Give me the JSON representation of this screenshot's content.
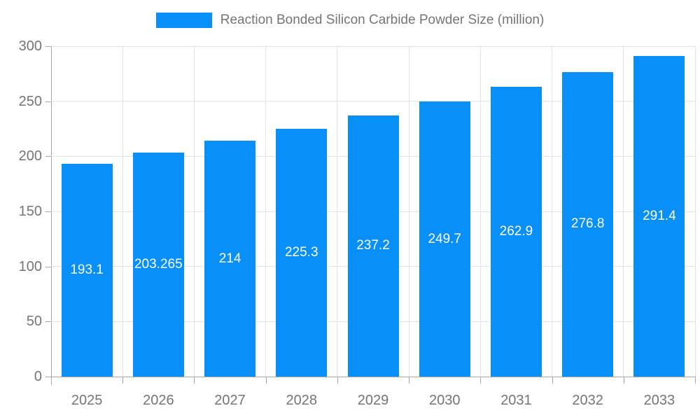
{
  "chart_data": {
    "type": "bar",
    "title": "Reaction Bonded Silicon Carbide Powder Size (million)",
    "categories": [
      "2025",
      "2026",
      "2027",
      "2028",
      "2029",
      "2030",
      "2031",
      "2032",
      "2033"
    ],
    "values": [
      193.1,
      203.265,
      214,
      225.3,
      237.2,
      249.7,
      262.9,
      276.8,
      291.4
    ],
    "value_labels": [
      "193.1",
      "203.265",
      "214",
      "225.3",
      "237.2",
      "249.7",
      "262.9",
      "276.8",
      "291.4"
    ],
    "xlabel": "",
    "ylabel": "",
    "ylim": [
      0,
      300
    ],
    "yticks": [
      0,
      50,
      100,
      150,
      200,
      250,
      300
    ],
    "grid": true,
    "legend_position": "top-center",
    "colors": {
      "bar": "#0890F8",
      "bar_label": "#FFFFFF",
      "axis_text": "#757575",
      "axis_line": "#A6A6A6",
      "gridline": "#E3E3E3",
      "background": "#FFFFFF"
    }
  }
}
